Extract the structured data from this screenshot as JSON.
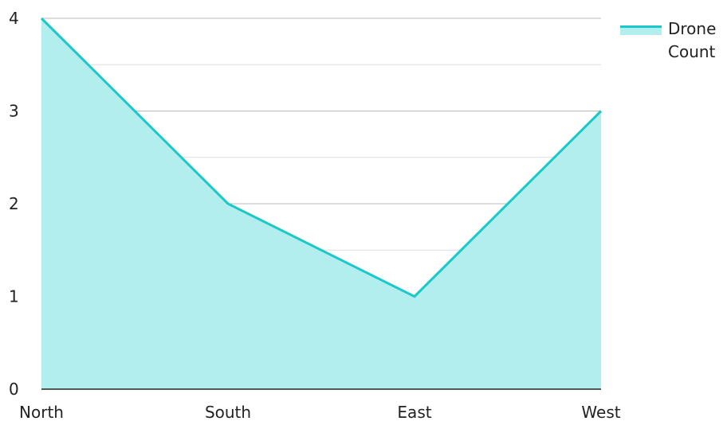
{
  "chart_data": {
    "type": "area",
    "categories": [
      "North",
      "South",
      "East",
      "West"
    ],
    "series": [
      {
        "name": "Drone Count",
        "values": [
          4,
          2,
          1,
          3
        ]
      }
    ],
    "ylim": [
      0,
      4
    ],
    "yticks": [
      0,
      1,
      2,
      3,
      4
    ],
    "minor_gridlines": true,
    "grid": true,
    "legend_position": "top-right",
    "colors": {
      "line": "#1CC8C8",
      "fill": "#B2EEEE",
      "grid_major": "#bbbbbb",
      "grid_minor": "#dddddd",
      "axis": "#222222"
    }
  }
}
